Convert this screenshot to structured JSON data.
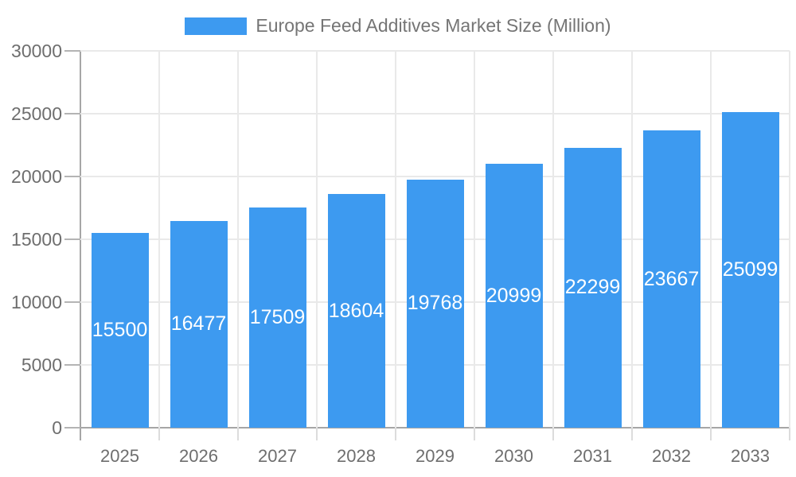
{
  "colors": {
    "bar": "#3D9AF0",
    "bar_label": "#FFFFFF",
    "axis_line": "#A6A6A6",
    "grid_line": "#E9E9E9",
    "tick_line": "#B4B4B4",
    "minor_tick_line": "#DCDCDC",
    "axis_label": "#6E6E6E",
    "legend_text": "#757575",
    "background": "#FFFFFF"
  },
  "chart_data": {
    "type": "bar",
    "title": "",
    "series_name": "Europe Feed Additives Market Size (Million)",
    "categories": [
      "2025",
      "2026",
      "2027",
      "2028",
      "2029",
      "2030",
      "2031",
      "2032",
      "2033"
    ],
    "values": [
      15500,
      16477,
      17509,
      18604,
      19768,
      20999,
      22299,
      23667,
      25099
    ],
    "xlabel": "",
    "ylabel": "",
    "ylim": [
      0,
      30000
    ],
    "yticks": [
      0,
      5000,
      10000,
      15000,
      20000,
      25000,
      30000
    ],
    "grid": true,
    "legend_position": "top-center",
    "value_labels": "inside-center"
  }
}
